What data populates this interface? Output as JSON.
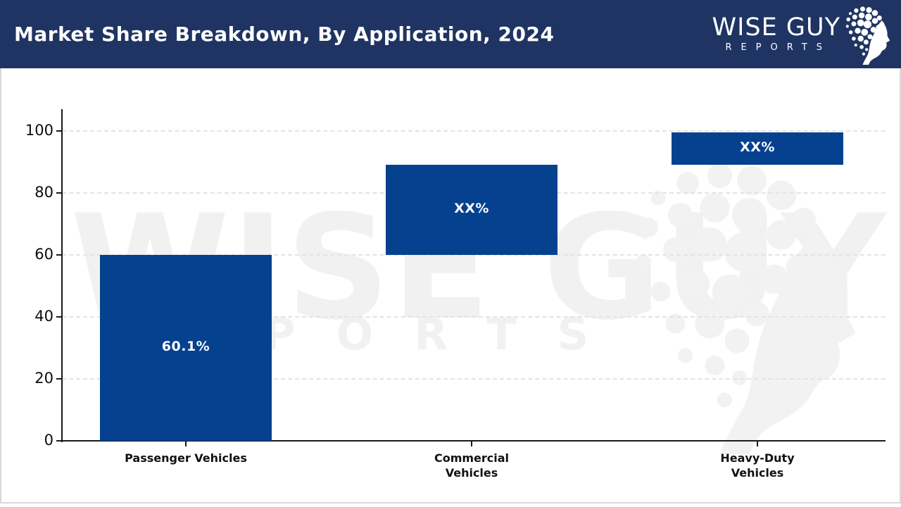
{
  "header": {
    "title": "Market Share Breakdown, By Application, 2024",
    "logo": {
      "line1": "WISE GUY",
      "line2": "REPORTS"
    }
  },
  "watermark": {
    "line1": "WISE GUY",
    "line2": "REPORTS"
  },
  "colors": {
    "header_bg": "#1f3462",
    "bar": "#05418f",
    "bar_label": "#ffffff",
    "grid": "#e3e3e3",
    "axis": "#1a1a1a",
    "watermark": "#f1f1f1"
  },
  "chart_data": {
    "type": "bar",
    "subtype": "waterfall",
    "title": "Market Share Breakdown, By Application, 2024",
    "xlabel": "",
    "ylabel": "",
    "categories": [
      "Passenger Vehicles",
      "Commercial Vehicles",
      "Heavy-Duty Vehicles"
    ],
    "category_lines": [
      [
        "Passenger Vehicles"
      ],
      [
        "Commercial",
        "Vehicles"
      ],
      [
        "Heavy-Duty",
        "Vehicles"
      ]
    ],
    "segments": [
      {
        "category": "Passenger Vehicles",
        "start": 0,
        "end": 60.1,
        "label": "60.1%"
      },
      {
        "category": "Commercial Vehicles",
        "start": 60.1,
        "end": 89.1,
        "label": "XX%"
      },
      {
        "category": "Heavy-Duty Vehicles",
        "start": 89.1,
        "end": 99.6,
        "label": "XX%"
      }
    ],
    "yticks": [
      0,
      20,
      40,
      60,
      80,
      100
    ],
    "ylim": [
      0,
      107
    ],
    "grid": "horizontal-dashed",
    "legend": "none"
  }
}
